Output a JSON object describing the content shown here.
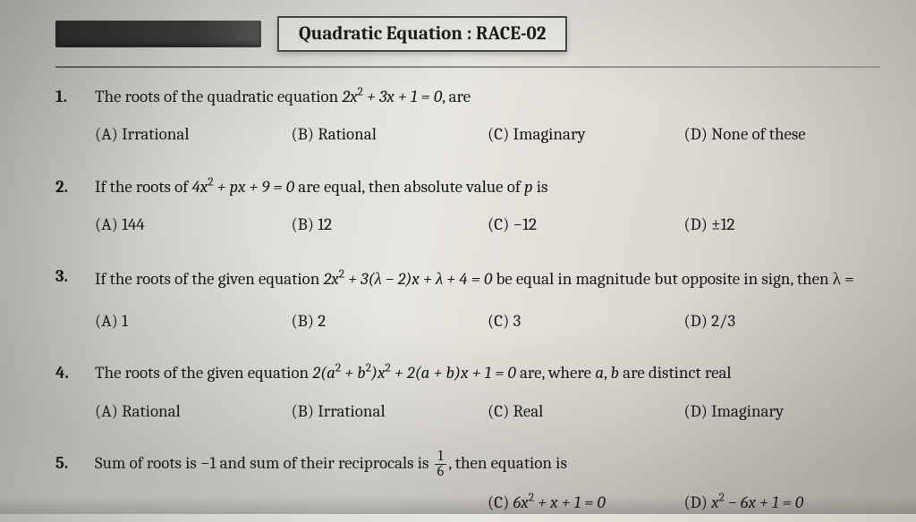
{
  "title": "Quadratic Equation : RACE-02",
  "questions": [
    {
      "num": "1.",
      "stem_pre": "The roots of the quadratic equation ",
      "stem_math": "2x² + 3x + 1 = 0",
      "stem_post": ", are",
      "opts": [
        "(A) Irrational",
        "(B) Rational",
        "(C) Imaginary",
        "(D) None of these"
      ]
    },
    {
      "num": "2.",
      "stem_pre": "If the roots of ",
      "stem_math": "4x² + px + 9 = 0",
      "stem_post": " are equal, then absolute value of p is",
      "opts": [
        "(A) 144",
        "(B) 12",
        "(C) −12",
        "(D) ±12"
      ]
    },
    {
      "num": "3.",
      "stem_pre": "If the roots of the given equation ",
      "stem_math": "2x² + 3(λ − 2)x + λ + 4 = 0",
      "stem_post": " be equal in magnitude but opposite in sign, then λ =",
      "opts": [
        "(A) 1",
        "(B) 2",
        "(C) 3",
        "(D) 2/3"
      ]
    },
    {
      "num": "4.",
      "stem_pre": "The roots of the given equation ",
      "stem_math": "2(a² + b²)x² + 2(a + b)x + 1 = 0",
      "stem_post": " are, where a, b are distinct real",
      "opts": [
        "(A) Rational",
        "(B) Irrational",
        "(C) Real",
        "(D) Imaginary"
      ]
    },
    {
      "num": "5.",
      "stem_pre": "Sum of roots is −1 and sum of their reciprocals is ",
      "stem_math": "1/6",
      "stem_post": ", then equation is",
      "opts": [
        "",
        "",
        "(C) 6x² + x + 1 = 0",
        "(D) x² − 6x + 1 = 0"
      ]
    }
  ]
}
